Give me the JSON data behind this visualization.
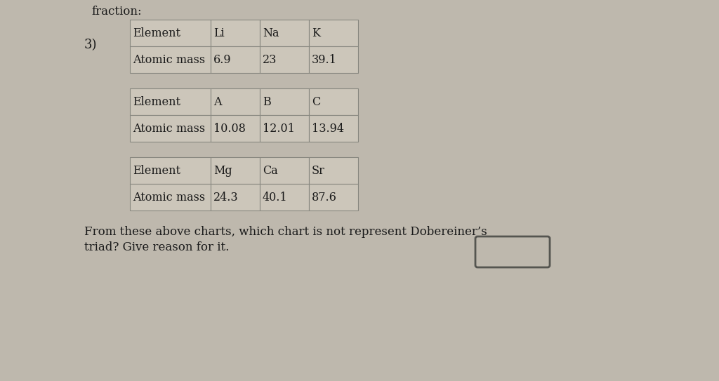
{
  "question_number": "3)",
  "top_text": "fraction:",
  "table1": {
    "rows": [
      [
        "Element",
        "Li",
        "Na",
        "K"
      ],
      [
        "Atomic mass",
        "6.9",
        "23",
        "39.1"
      ]
    ]
  },
  "table2": {
    "rows": [
      [
        "Element",
        "A",
        "B",
        "C"
      ],
      [
        "Atomic mass",
        "10.08",
        "12.01",
        "13.94"
      ]
    ]
  },
  "table3": {
    "rows": [
      [
        "Element",
        "Mg",
        "Ca",
        "Sr"
      ],
      [
        "Atomic mass",
        "24.3",
        "40.1",
        "87.6"
      ]
    ]
  },
  "footer_line1": "From these above charts, which chart is not represent Dobereiner’s",
  "footer_line2": "triad? Give reason for it.",
  "bg_color": "#beb8ad",
  "cell_color": "#ccc6ba",
  "border_color": "#888880",
  "text_color": "#1a1a1a",
  "font_size": 11.5,
  "footer_font_size": 12,
  "qnum_font_size": 13
}
